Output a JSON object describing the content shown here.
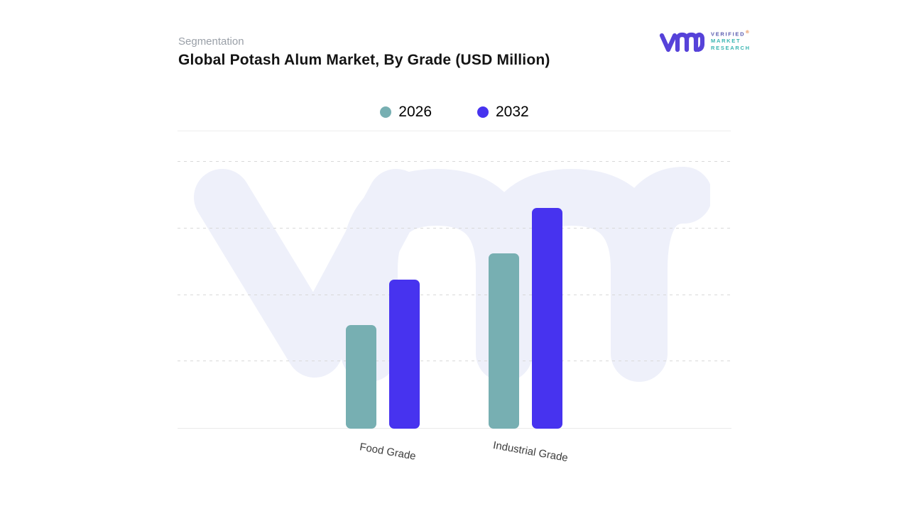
{
  "header": {
    "eyebrow": "Segmentation",
    "title": "Global Potash Alum Market, By Grade (USD Million)"
  },
  "logo": {
    "mark_icon": "vmr-monogram",
    "line1": "VERIFIED",
    "line2": "MARKET",
    "line3": "RESEARCH",
    "registered": "®",
    "colors": {
      "mark": "#5642d9",
      "verified": "#5a5cb0",
      "market_research": "#3ab5b2",
      "registered": "#e0732c"
    }
  },
  "chart_data": {
    "type": "bar",
    "title": "Global Potash Alum Market, By Grade (USD Million)",
    "categories": [
      "Food Grade",
      "Industrial Grade"
    ],
    "series": [
      {
        "name": "2026",
        "color": "#77afb2",
        "values": [
          39,
          66
        ]
      },
      {
        "name": "2032",
        "color": "#4733ef",
        "values": [
          56,
          83
        ]
      }
    ],
    "xlabel": "",
    "ylabel": "",
    "ylim": [
      0,
      100
    ],
    "y_axis_labels_visible": false,
    "units": "USD Million (no numeric axis labels shown; values estimated from bar heights as % of plot height)",
    "grid": "horizontal-dashed",
    "legend_position": "top-center",
    "background_watermark": "VMR monogram"
  },
  "colors": {
    "watermark": "#eef0fa",
    "gridline": "#d9d9d9",
    "axis_line": "#eaeaea",
    "separator": "#ededed",
    "title": "#141414",
    "eyebrow": "#9aa0a8",
    "category_label": "#3d3d3d",
    "legend_label": "#000000"
  }
}
